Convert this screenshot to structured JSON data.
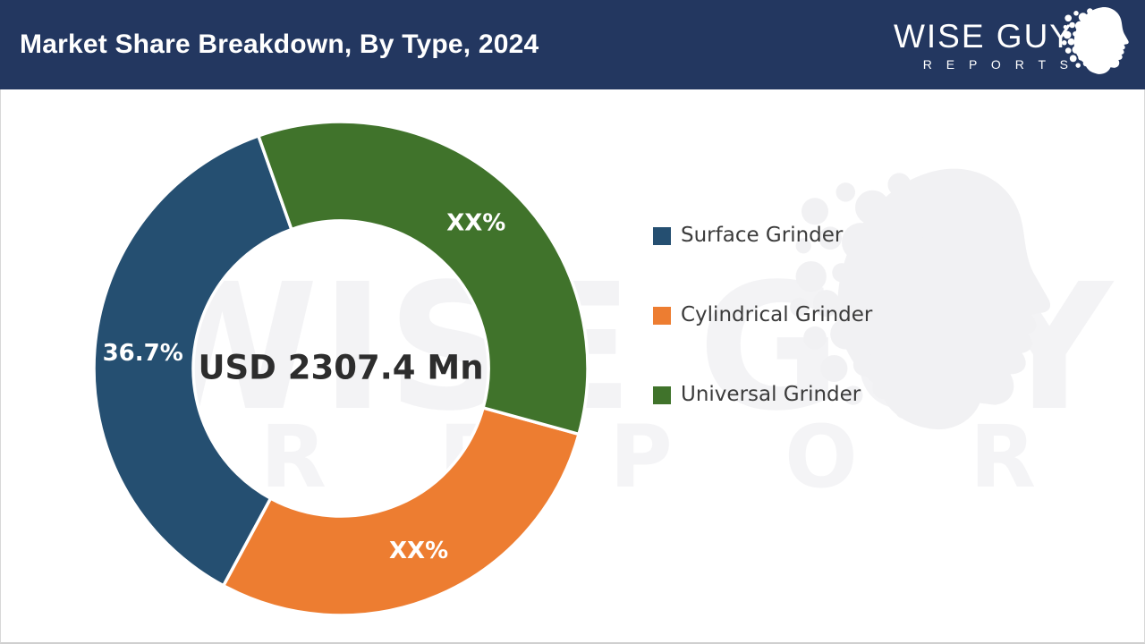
{
  "header": {
    "title": "Market Share Breakdown, By Type, 2024",
    "bg_color": "#233760",
    "logo": {
      "name": "WISE GUY",
      "sub": "R E P O R T S"
    }
  },
  "watermark": {
    "line1": "WISE GUY",
    "line2": "R E P O R T S"
  },
  "center_label": "USD 2307.4 Mn",
  "legend": [
    {
      "label": "Surface Grinder",
      "color": "#254F71"
    },
    {
      "label": "Cylindrical Grinder",
      "color": "#ED7D31"
    },
    {
      "label": "Universal Grinder",
      "color": "#40732B"
    }
  ],
  "chart_data": {
    "type": "pie",
    "subtype": "donut",
    "title": "Market Share Breakdown, By Type, 2024",
    "center_label": "USD 2307.4 Mn",
    "start_angle_deg": 109.5,
    "direction": "counterclockwise",
    "outer_radius": 277,
    "inner_radius": 165,
    "label_radius": 222,
    "legend_position": "right",
    "slices": [
      {
        "name": "Surface Grinder",
        "value": 36.7,
        "display": "36.7%",
        "color": "#254F71"
      },
      {
        "name": "Cylindrical Grinder",
        "value": 28.6,
        "display": "XX%",
        "color": "#ED7D31"
      },
      {
        "name": "Universal Grinder",
        "value": 34.7,
        "display": "XX%",
        "color": "#40732B"
      }
    ]
  }
}
